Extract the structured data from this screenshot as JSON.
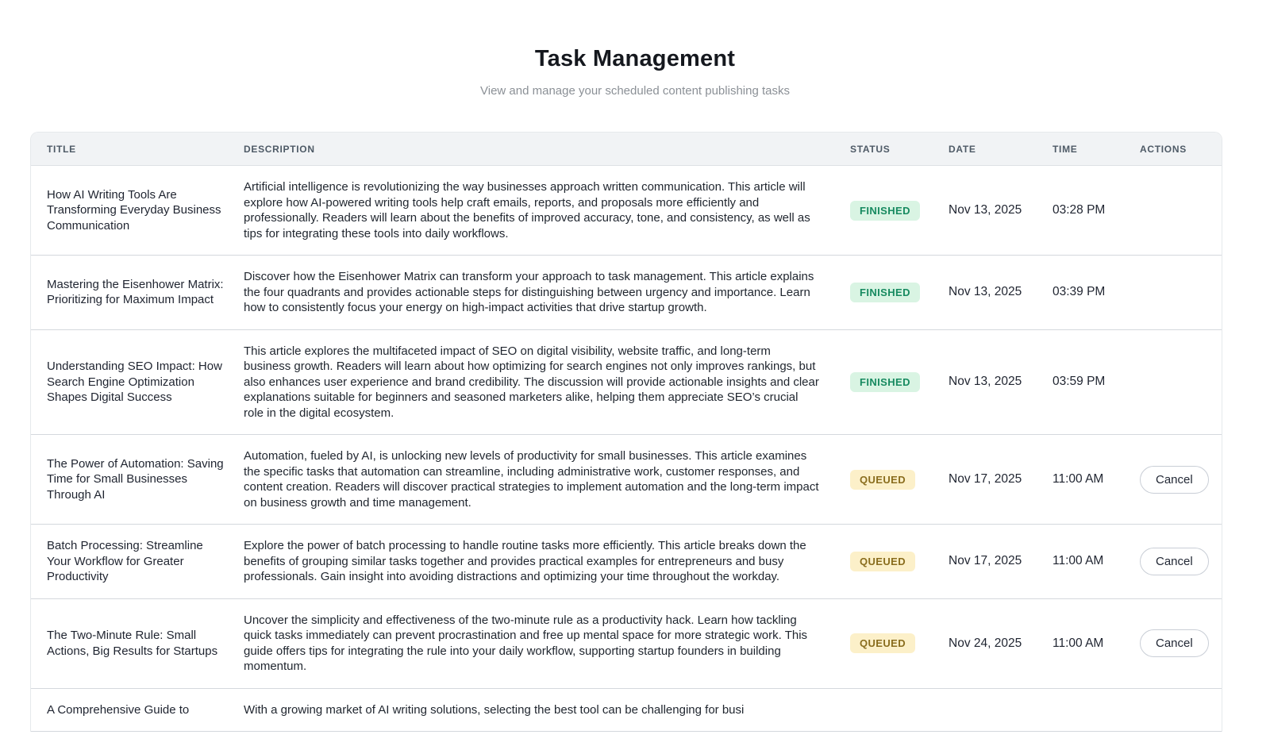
{
  "page": {
    "title": "Task Management",
    "subtitle": "View and manage your scheduled content publishing tasks"
  },
  "colors": {
    "finished_badge_bg": "#d9f4e3",
    "finished_badge_text": "#178a60",
    "queued_badge_bg": "#fcf0c9",
    "queued_badge_text": "#8a6d1e",
    "header_bg": "#f1f3f5"
  },
  "table": {
    "columns": [
      "TITLE",
      "DESCRIPTION",
      "STATUS",
      "DATE",
      "TIME",
      "ACTIONS"
    ],
    "cancel_label": "Cancel",
    "rows": [
      {
        "title": "How AI Writing Tools Are Transforming Everyday Business Communication",
        "description": "Artificial intelligence is revolutionizing the way businesses approach written communication. This article will explore how AI-powered writing tools help craft emails, reports, and proposals more efficiently and professionally. Readers will learn about the benefits of improved accuracy, tone, and consistency, as well as tips for integrating these tools into daily workflows.",
        "status": "FINISHED",
        "date": "Nov 13, 2025",
        "time": "03:28 PM",
        "action": ""
      },
      {
        "title": "Mastering the Eisenhower Matrix: Prioritizing for Maximum Impact",
        "description": "Discover how the Eisenhower Matrix can transform your approach to task management. This article explains the four quadrants and provides actionable steps for distinguishing between urgency and importance. Learn how to consistently focus your energy on high-impact activities that drive startup growth.",
        "status": "FINISHED",
        "date": "Nov 13, 2025",
        "time": "03:39 PM",
        "action": ""
      },
      {
        "title": "Understanding SEO Impact: How Search Engine Optimization Shapes Digital Success",
        "description": "This article explores the multifaceted impact of SEO on digital visibility, website traffic, and long-term business growth. Readers will learn about how optimizing for search engines not only improves rankings, but also enhances user experience and brand credibility. The discussion will provide actionable insights and clear explanations suitable for beginners and seasoned marketers alike, helping them appreciate SEO’s crucial role in the digital ecosystem.",
        "status": "FINISHED",
        "date": "Nov 13, 2025",
        "time": "03:59 PM",
        "action": ""
      },
      {
        "title": "The Power of Automation: Saving Time for Small Businesses Through AI",
        "description": "Automation, fueled by AI, is unlocking new levels of productivity for small businesses. This article examines the specific tasks that automation can streamline, including administrative work, customer responses, and content creation. Readers will discover practical strategies to implement automation and the long-term impact on business growth and time management.",
        "status": "QUEUED",
        "date": "Nov 17, 2025",
        "time": "11:00 AM",
        "action": "Cancel"
      },
      {
        "title": "Batch Processing: Streamline Your Workflow for Greater Productivity",
        "description": "Explore the power of batch processing to handle routine tasks more efficiently. This article breaks down the benefits of grouping similar tasks together and provides practical examples for entrepreneurs and busy professionals. Gain insight into avoiding distractions and optimizing your time throughout the workday.",
        "status": "QUEUED",
        "date": "Nov 17, 2025",
        "time": "11:00 AM",
        "action": "Cancel"
      },
      {
        "title": "The Two-Minute Rule: Small Actions, Big Results for Startups",
        "description": "Uncover the simplicity and effectiveness of the two-minute rule as a productivity hack. Learn how tackling quick tasks immediately can prevent procrastination and free up mental space for more strategic work. This guide offers tips for integrating the rule into your daily workflow, supporting startup founders in building momentum.",
        "status": "QUEUED",
        "date": "Nov 24, 2025",
        "time": "11:00 AM",
        "action": "Cancel"
      },
      {
        "title": "A Comprehensive Guide to",
        "description": "With a growing market of AI writing solutions, selecting the best tool can be challenging for busi",
        "status": "",
        "date": "",
        "time": "",
        "action": ""
      }
    ]
  }
}
